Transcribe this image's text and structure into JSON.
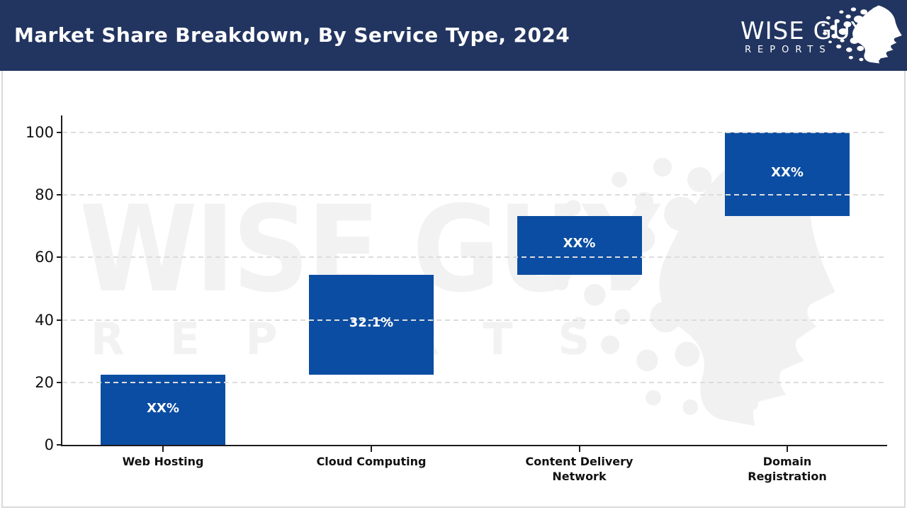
{
  "header": {
    "title": "Market Share Breakdown, By Service Type, 2024",
    "logo": {
      "line1": "WISE GUY",
      "line2": "REPORTS"
    },
    "bg_color": "#223560"
  },
  "watermark": {
    "line1": "WISE GUY",
    "line2": "REPORTS"
  },
  "chart_data": {
    "type": "bar",
    "variant": "waterfall-floating-bars",
    "title": "Market Share Breakdown, By Service Type, 2024",
    "categories": [
      "Web Hosting",
      "Cloud Computing",
      "Content Delivery\nNetwork",
      "Domain\nRegistration"
    ],
    "series": [
      {
        "name": "Market Share (%)",
        "segments": [
          {
            "category": "Web Hosting",
            "from": 0,
            "to": 22.4,
            "label": "XX%"
          },
          {
            "category": "Cloud Computing",
            "from": 22.4,
            "to": 54.5,
            "label": "32.1%"
          },
          {
            "category": "Content Delivery Network",
            "from": 54.5,
            "to": 73.2,
            "label": "XX%"
          },
          {
            "category": "Domain Registration",
            "from": 73.2,
            "to": 100,
            "label": "XX%"
          }
        ]
      }
    ],
    "ylim": [
      0,
      105
    ],
    "yticks": [
      0,
      20,
      40,
      60,
      80,
      100
    ],
    "xlabel": "",
    "ylabel": "",
    "grid": "horizontal dashed, drawn over bars",
    "legend": "none",
    "bar_color": "#0b4da2",
    "bar_label_color": "#ffffff",
    "axis_color": "#1c1c1c",
    "gridline_color": "#dcdcdc"
  }
}
